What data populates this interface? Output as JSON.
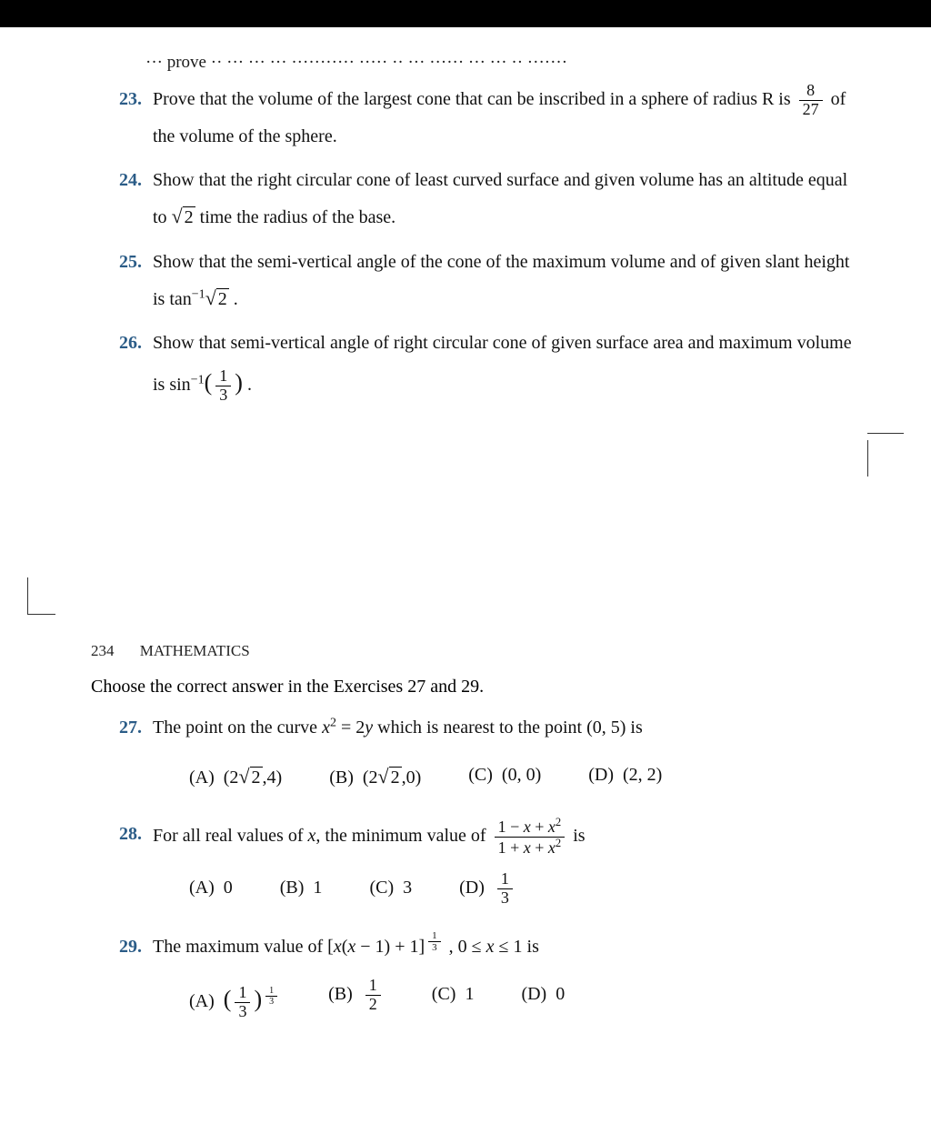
{
  "topbar": {},
  "cutoff_line": "··· prove ·· ··· ··· ··· ··········· ····· ·· ··· ······ ··· ··· ·· ·······",
  "problems_top": [
    {
      "num": "23.",
      "html": "Prove that the volume of the largest cone that can be inscribed in a sphere of radius R is <span class='frac'><span class='num'>8</span><span class='den'>27</span></span> of the volume of the sphere."
    },
    {
      "num": "24.",
      "html": "Show that the right circular cone of least curved surface and given volume has an altitude equal to <span class='sqrt'><span class='rad'>2</span></span> time the radius of the base."
    },
    {
      "num": "25.",
      "html": "Show that the semi-vertical angle of the cone of the maximum volume and of given slant height is tan<sup>&minus;1</sup><span class='sqrt'><span class='rad'>2</span></span> ."
    },
    {
      "num": "26.",
      "html": "Show that semi-vertical angle of right circular cone of given surface area and maximum volume is sin<sup>&minus;1</sup><span style='font-size:1.3em'>(</span><span class='frac'><span class='num'>1</span><span class='den'>3</span></span><span style='font-size:1.3em'>)</span> ."
    }
  ],
  "page_header": {
    "page": "234",
    "subject": "MATHEMATICS"
  },
  "instruction": "Choose the correct answer in the Exercises 27 and 29.",
  "problems_bottom": [
    {
      "num": "27.",
      "html": "The point on the curve <i>x</i><sup>2</sup> = 2<i>y</i> which is nearest to the point (0, 5) is",
      "options": [
        "(A)&nbsp; (2<span class='sqrt'><span class='rad'>2</span></span>,4)",
        "(B)&nbsp; (2<span class='sqrt'><span class='rad'>2</span></span>,0)",
        "(C)&nbsp; (0, 0)",
        "(D)&nbsp; (2, 2)"
      ]
    },
    {
      "num": "28.",
      "html": "For all real values of <i>x</i>, the minimum value of <span class='frac'><span class='num'>1 &minus; <i>x</i> + <i>x</i><sup>2</sup></span><span class='den'>1 + <i>x</i> + <i>x</i><sup>2</sup></span></span> is",
      "options": [
        "(A)&nbsp; 0",
        "(B)&nbsp; 1",
        "(C)&nbsp; 3",
        "(D)&nbsp; <span class='frac'><span class='num'>1</span><span class='den'>3</span></span>"
      ]
    },
    {
      "num": "29.",
      "html": "The maximum value of [<i>x</i>(<i>x</i> &minus; 1) + 1]<sup><span class='frac' style='font-size:11px'><span class='num'>1</span><span class='den'>3</span></span></sup> , 0 &le; <i>x</i> &le; 1 is",
      "options": [
        "(A)&nbsp; <span style='font-size:1.3em'>(</span><span class='frac'><span class='num'>1</span><span class='den'>3</span></span><span style='font-size:1.3em'>)</span><sup><span class='frac' style='font-size:10px'><span class='num'>1</span><span class='den'>3</span></span></sup>",
        "(B)&nbsp; <span class='frac'><span class='num'>1</span><span class='den'>2</span></span>",
        "(C)&nbsp; 1",
        "(D)&nbsp; 0"
      ]
    }
  ]
}
